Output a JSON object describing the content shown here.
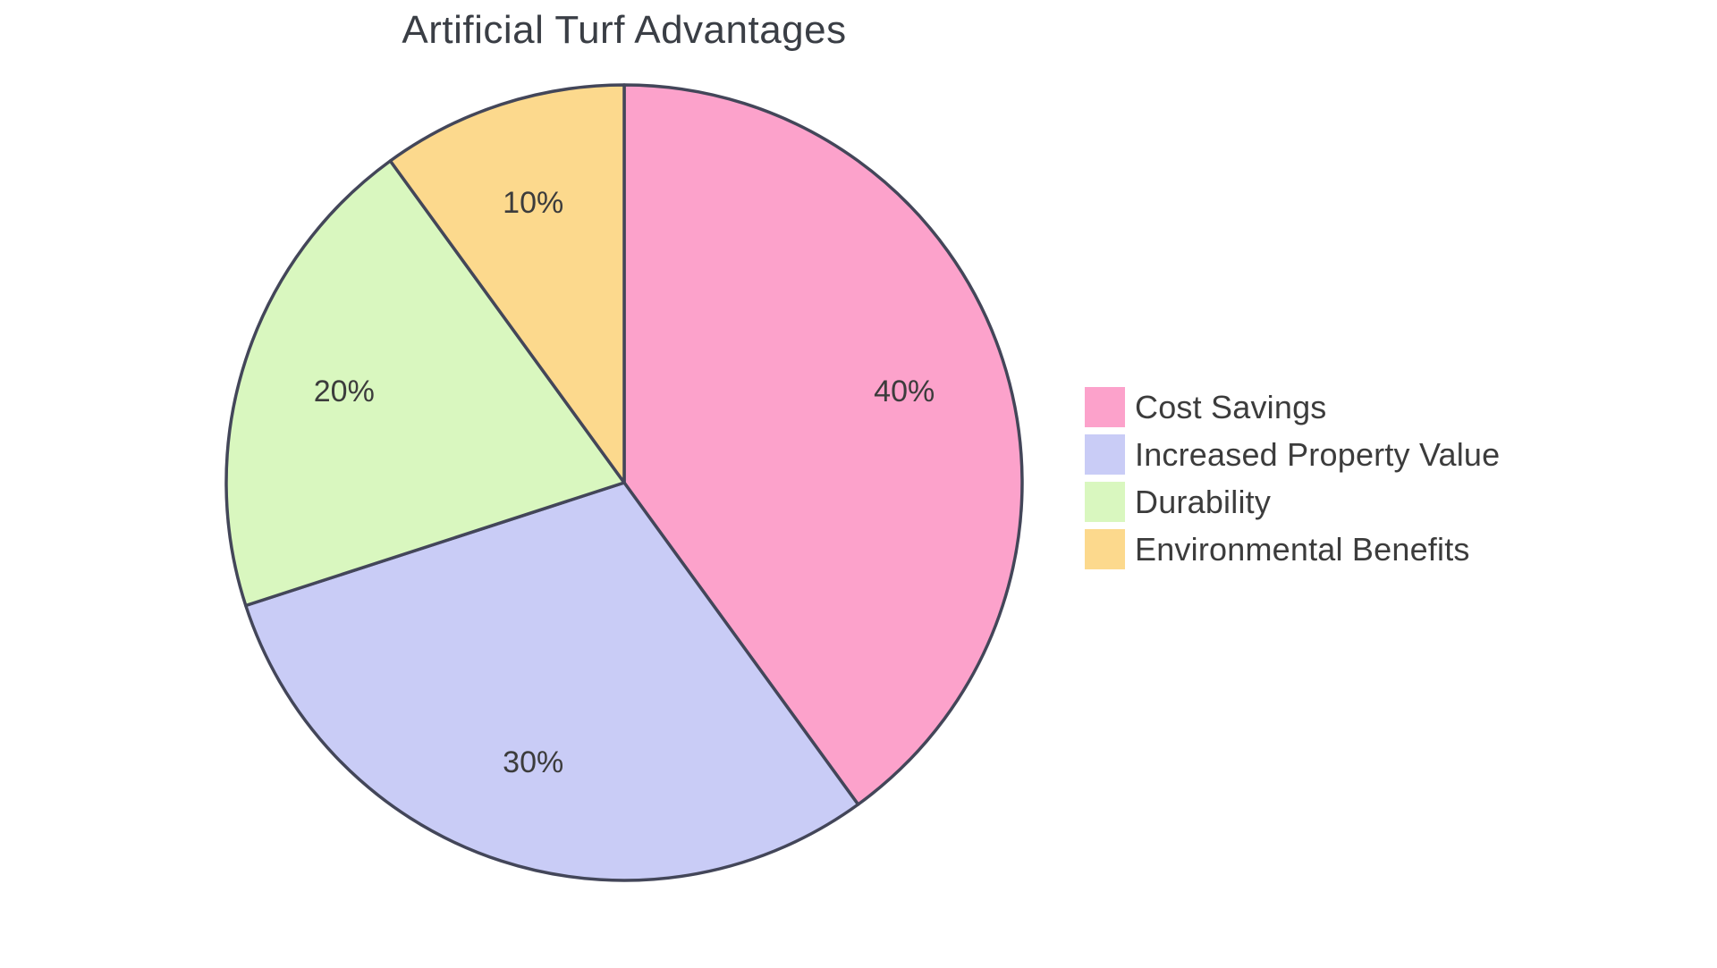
{
  "page": {
    "background": "#FFFFFF"
  },
  "chart_data": {
    "type": "pie",
    "title": "Artificial Turf Advantages",
    "labels": [
      "Cost Savings",
      "Increased Property Value",
      "Durability",
      "Environmental Benefits"
    ],
    "values": [
      40,
      30,
      20,
      10
    ],
    "slice_labels": [
      "40%",
      "30%",
      "20%",
      "10%"
    ],
    "colors": [
      "#FCA2CB",
      "#C9CCF6",
      "#D9F7BF",
      "#FCD98D"
    ],
    "stroke_color": "#434659",
    "slice_label_color": "#3C3C3C",
    "title_color": "#3A3E45",
    "legend_text_color": "#3C3C3C",
    "start_angle": "top",
    "direction": "clockwise",
    "legend_position": "right"
  }
}
